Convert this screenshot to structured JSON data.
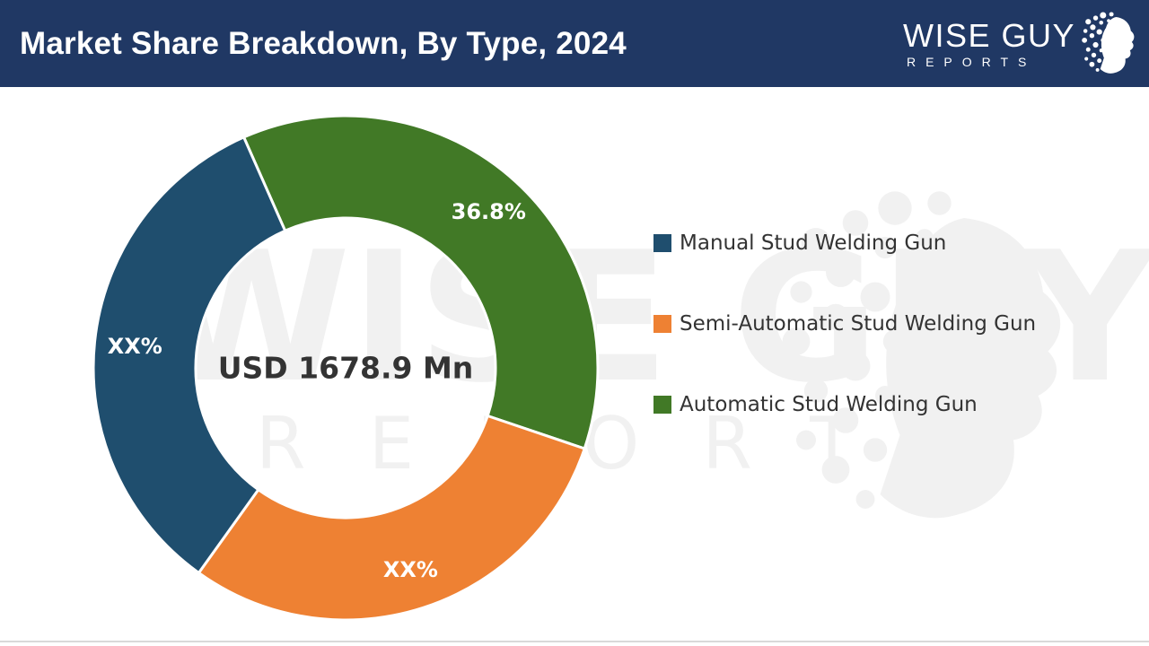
{
  "header": {
    "title": "Market Share Breakdown, By Type, 2024",
    "background_color": "#203864",
    "logo": {
      "primary": "WISE GUY",
      "secondary": "REPORTS"
    }
  },
  "watermark": {
    "primary": "WISE GUY",
    "secondary": "REPORTS"
  },
  "chart_data": {
    "type": "pie",
    "subtype": "donut",
    "title": "Market Share Breakdown, By Type, 2024",
    "center_label": "USD 1678.9 Mn",
    "start_angle_deg_from_north": -23.8,
    "legend_position": "right",
    "segments": [
      {
        "name": "Automatic Stud Welding Gun",
        "display_label": "36.8%",
        "value_pct": 36.8,
        "color": "#417926"
      },
      {
        "name": "Semi-Automatic Stud Welding Gun",
        "display_label": "XX%",
        "value_pct": 29.7,
        "color": "#EE8133"
      },
      {
        "name": "Manual Stud Welding Gun",
        "display_label": "XX%",
        "value_pct": 33.5,
        "color": "#1F4E6E"
      }
    ],
    "legend": [
      {
        "label": "Manual Stud Welding Gun",
        "color": "#1F4E6E"
      },
      {
        "label": "Semi-Automatic Stud Welding Gun",
        "color": "#EE8133"
      },
      {
        "label": "Automatic Stud Welding Gun",
        "color": "#417926"
      }
    ]
  }
}
